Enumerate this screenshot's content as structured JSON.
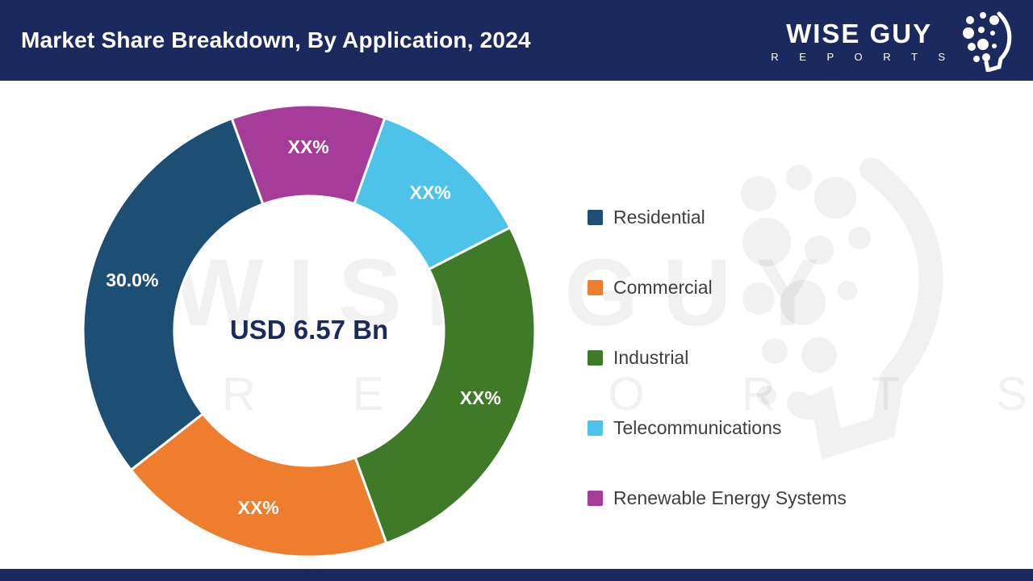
{
  "header": {
    "title": "Market Share Breakdown, By Application, 2024"
  },
  "logo": {
    "line1": "WISE GUY",
    "line2": "R E P O R T S"
  },
  "watermark": {
    "line1": "WISE GUY",
    "line2": "R E P O R T S"
  },
  "chart_data": {
    "type": "pie",
    "variant": "donut",
    "title": "Market Share Breakdown, By Application, 2024",
    "center_label": "USD 6.57 Bn",
    "start_angle": 232,
    "draw_order": [
      0,
      4,
      3,
      2,
      1
    ],
    "legend_position": "right",
    "segments": [
      {
        "name": "Residential",
        "color": "#1d4e74",
        "value": 30,
        "label": "30.0%"
      },
      {
        "name": "Commercial",
        "color": "#ee7d2e",
        "value": 20,
        "label": "XX%"
      },
      {
        "name": "Industrial",
        "color": "#3e7a27",
        "value": 27,
        "label": "XX%"
      },
      {
        "name": "Telecommunications",
        "color": "#4ec3ea",
        "value": 12,
        "label": "XX%"
      },
      {
        "name": "Renewable Energy Systems",
        "color": "#a53c99",
        "value": 11,
        "label": "XX%"
      }
    ]
  },
  "colors": {
    "header_bg": "#1b2a5e",
    "center_text": "#1b2a5e",
    "legend_text": "#3f3f3f"
  }
}
